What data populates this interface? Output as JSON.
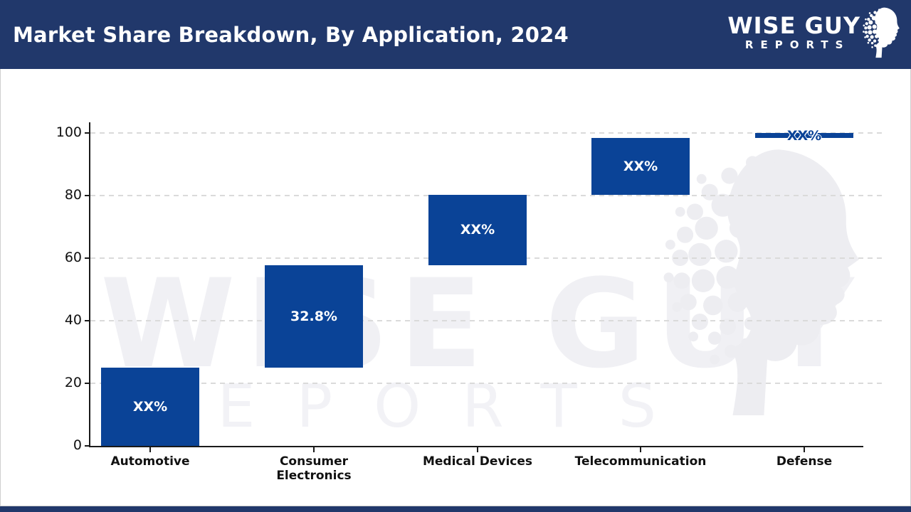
{
  "header": {
    "title": "Market Share Breakdown, By Application, 2024",
    "logo": {
      "line1": "WISE GUY",
      "line2": "REPORTS"
    }
  },
  "watermark": {
    "line1": "WISE GUY",
    "line2": "REPORTS"
  },
  "colors": {
    "header_bg": "#21386b",
    "bar": "#0a4397",
    "grid": "#dadada",
    "axis": "#1a1a1a",
    "watermark_text": "#f0f0f4"
  },
  "chart_data": {
    "type": "bar",
    "subtype": "waterfall",
    "title": "Market Share Breakdown, By Application, 2024",
    "categories": [
      "Automotive",
      "Consumer Electronics",
      "Medical Devices",
      "Telecommunication",
      "Defense"
    ],
    "segments": [
      {
        "category": "Automotive",
        "start": 0,
        "end": 25,
        "value": 25,
        "label": "XX%"
      },
      {
        "category": "Consumer Electronics",
        "start": 25,
        "end": 57.8,
        "value": 32.8,
        "label": "32.8%"
      },
      {
        "category": "Medical Devices",
        "start": 57.8,
        "end": 80.2,
        "value": 22.4,
        "label": "XX%"
      },
      {
        "category": "Telecommunication",
        "start": 80.2,
        "end": 98.3,
        "value": 18.1,
        "label": "XX%"
      },
      {
        "category": "Defense",
        "start": 98.3,
        "end": 100,
        "value": 1.7,
        "label": "XX%"
      }
    ],
    "xlabel": "",
    "ylabel": "",
    "ylim": [
      0,
      100
    ],
    "yticks": [
      0,
      20,
      40,
      60,
      80,
      100
    ],
    "grid": "horizontal-dashed",
    "legend": "none",
    "bar_label_color": "#ffffff"
  }
}
